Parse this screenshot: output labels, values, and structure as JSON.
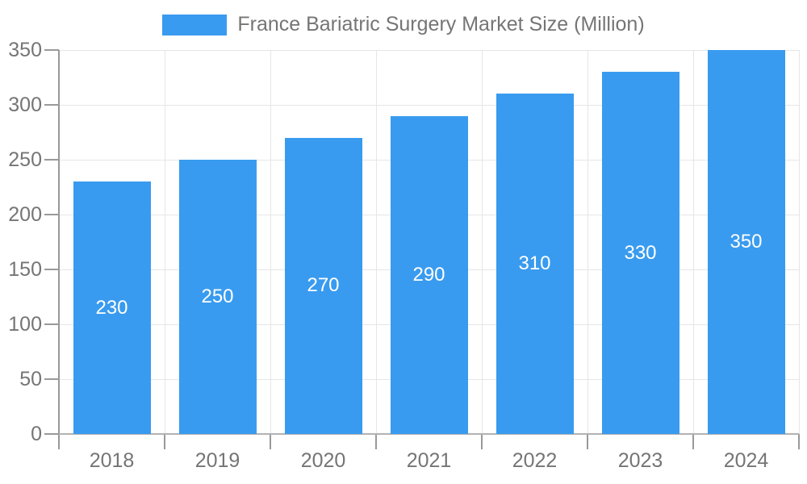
{
  "chart_data": {
    "type": "bar",
    "title": "France Bariatric Surgery Market Size (Million)",
    "categories": [
      "2018",
      "2019",
      "2020",
      "2021",
      "2022",
      "2023",
      "2024"
    ],
    "values": [
      230,
      250,
      270,
      290,
      310,
      330,
      350
    ],
    "series": [
      {
        "name": "France Bariatric Surgery Market Size (Million)",
        "values": [
          230,
          250,
          270,
          290,
          310,
          330,
          350
        ]
      }
    ],
    "xlabel": "",
    "ylabel": "",
    "ylim": [
      0,
      350
    ],
    "ytick_step": 50,
    "yticks": [
      0,
      50,
      100,
      150,
      200,
      250,
      300,
      350
    ],
    "grid": "horizontal gridlines and vertical category separators",
    "legend_position": "top-center",
    "bar_color": "#399bef",
    "bar_label_color": "#ffffff",
    "axis_text_color": "#757575",
    "axis_line_color": "#999999",
    "gridline_color": "#e6e6e6"
  }
}
